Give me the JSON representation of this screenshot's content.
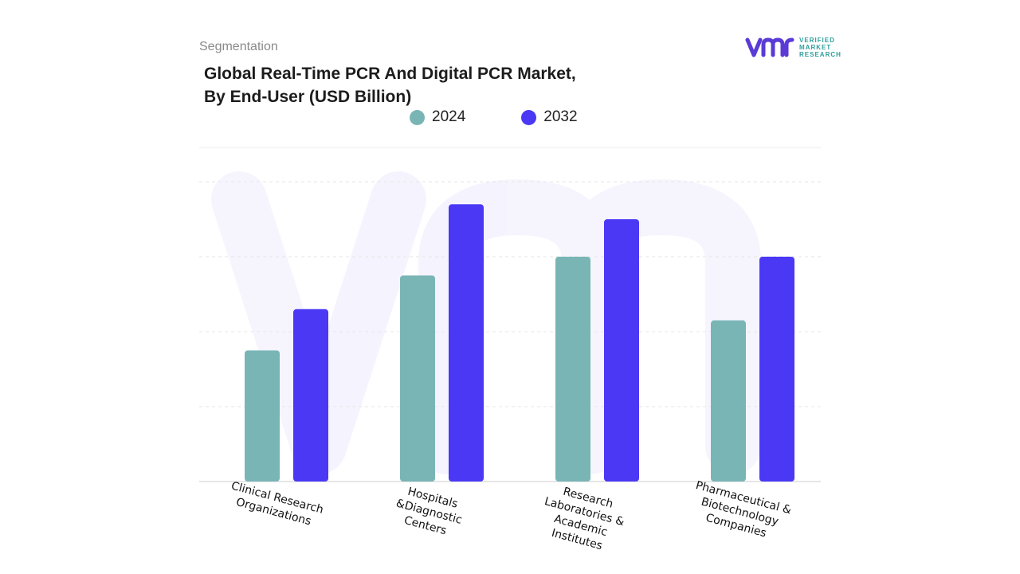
{
  "header": {
    "section": "Segmentation",
    "title_line1": "Global Real-Time PCR And Digital PCR Market,",
    "title_line2": "By End-User (USD Billion)"
  },
  "logo": {
    "mark": "vmr",
    "line1": "VERIFIED",
    "line2": "MARKET",
    "line3": "RESEARCH"
  },
  "colors": {
    "s2024": "#7ab5b6",
    "s2032": "#4a38f5",
    "logo_mark": "#5b3bd6",
    "logo_text": "#2f9e9c"
  },
  "chart_data": {
    "type": "bar",
    "categories": [
      [
        "Clinical Research",
        "Organizations"
      ],
      [
        "Hospitals",
        "&Diagnostic",
        "Centers"
      ],
      [
        "Research",
        "Laboratories &",
        "Academic",
        "Institutes"
      ],
      [
        "Pharmaceutical &",
        "Biotechnology",
        "Companies"
      ]
    ],
    "series": [
      {
        "name": "2024",
        "values": [
          1.75,
          2.75,
          3.0,
          2.15
        ]
      },
      {
        "name": "2032",
        "values": [
          2.3,
          3.7,
          3.5,
          3.0
        ]
      }
    ],
    "ylim": [
      0,
      4
    ],
    "grid": true,
    "legend": "top"
  }
}
